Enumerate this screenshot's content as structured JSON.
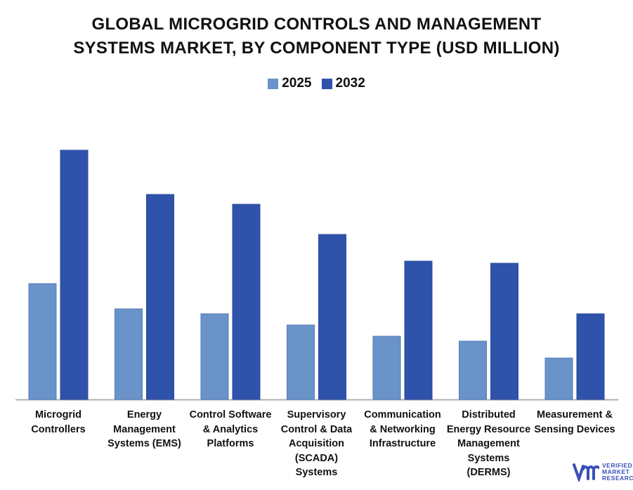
{
  "chart_data": {
    "type": "bar",
    "title": "GLOBAL MICROGRID CONTROLS AND MANAGEMENT SYSTEMS MARKET, BY COMPONENT TYPE (USD MILLION)",
    "title_lines": [
      "GLOBAL MICROGRID CONTROLS AND MANAGEMENT",
      "SYSTEMS MARKET, BY COMPONENT TYPE (USD MILLION)"
    ],
    "categories": [
      "Microgrid Controllers",
      "Energy Management Systems (EMS)",
      "Control Software & Analytics Platforms",
      "Supervisory Control & Data Acquisition (SCADA) Systems",
      "Communication & Networking Infrastructure",
      "Distributed Energy Resource Management Systems (DERMS)",
      "Measurement & Sensing Devices"
    ],
    "series": [
      {
        "name": "2025",
        "color": "#6a93c9",
        "values": [
          165,
          129,
          122,
          106,
          90,
          83,
          59
        ]
      },
      {
        "name": "2032",
        "color": "#2f52ab",
        "values": [
          355,
          292,
          278,
          235,
          197,
          194,
          122
        ]
      }
    ],
    "value_note_units": "relative (no value axis shown)",
    "ylim": [
      0,
      400
    ],
    "xlabel": "",
    "ylabel": "",
    "grid": false,
    "legend_position": "top"
  },
  "logo": {
    "text": "VERIFIED MARKET RESEARCH"
  }
}
